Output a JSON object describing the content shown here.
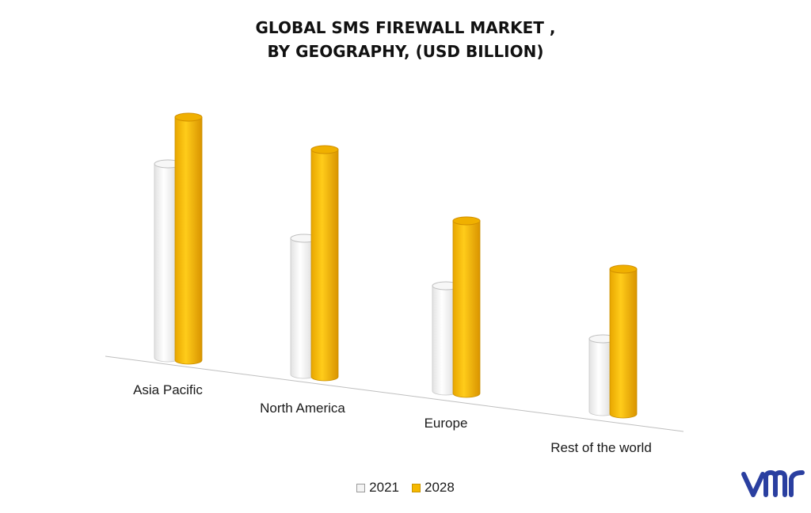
{
  "title_line1": "GLOBAL SMS FIREWALL MARKET ,",
  "title_line2": "BY GEOGRAPHY, (USD BILLION)",
  "colors": {
    "series_2021": "#f4f4f4",
    "series_2028": "#f5b800",
    "axis": "#bfbfbf",
    "logo": "#2a3fa0"
  },
  "logo_icon": "vmr-logo",
  "chart_data": {
    "type": "bar",
    "style": "3d-cylinder",
    "categories": [
      "Asia Pacific",
      "North America",
      "Europe",
      "Rest of the world"
    ],
    "series": [
      {
        "name": "2021",
        "values": [
          245,
          172,
          133,
          92
        ]
      },
      {
        "name": "2028",
        "values": [
          307,
          287,
          218,
          183
        ]
      }
    ],
    "legend": "bottom-center",
    "grid": false,
    "y_axis_visible": false
  }
}
